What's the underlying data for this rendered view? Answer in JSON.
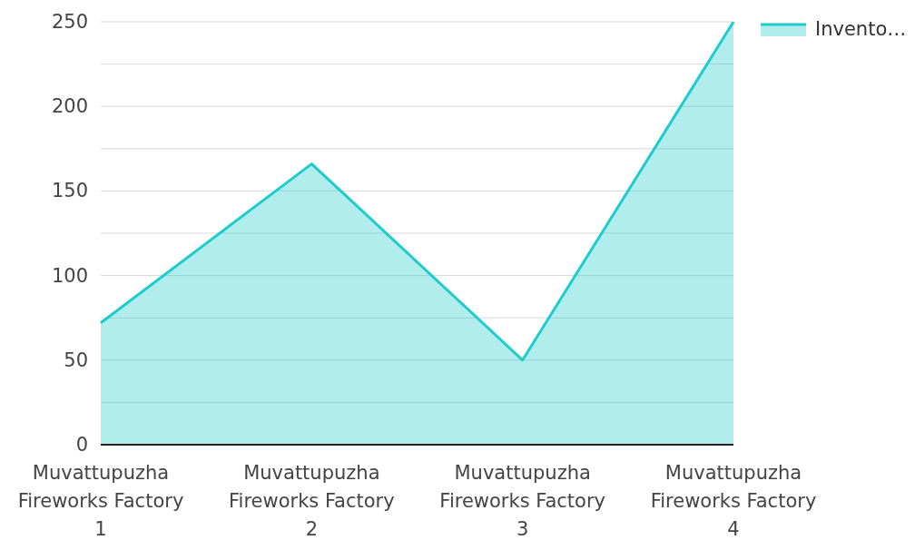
{
  "chart_data": {
    "type": "area",
    "categories": [
      "Muvattupuzha Fireworks Factory 1",
      "Muvattupuzha Fireworks Factory 2",
      "Muvattupuzha Fireworks Factory 3",
      "Muvattupuzha Fireworks Factory 4"
    ],
    "series": [
      {
        "name": "Invento…",
        "color": "#1fcccc",
        "values": [
          72,
          166,
          50,
          250
        ]
      }
    ],
    "ylim": [
      0,
      250
    ],
    "yticks": [
      0,
      {
        "value": 25,
        "label": null
      },
      50,
      {
        "value": 75,
        "label": null
      },
      100,
      {
        "value": 125,
        "label": null
      },
      150,
      {
        "value": 175,
        "label": null
      },
      200,
      {
        "value": 225,
        "label": null
      },
      250
    ],
    "grid": "y",
    "legend": "top right"
  }
}
